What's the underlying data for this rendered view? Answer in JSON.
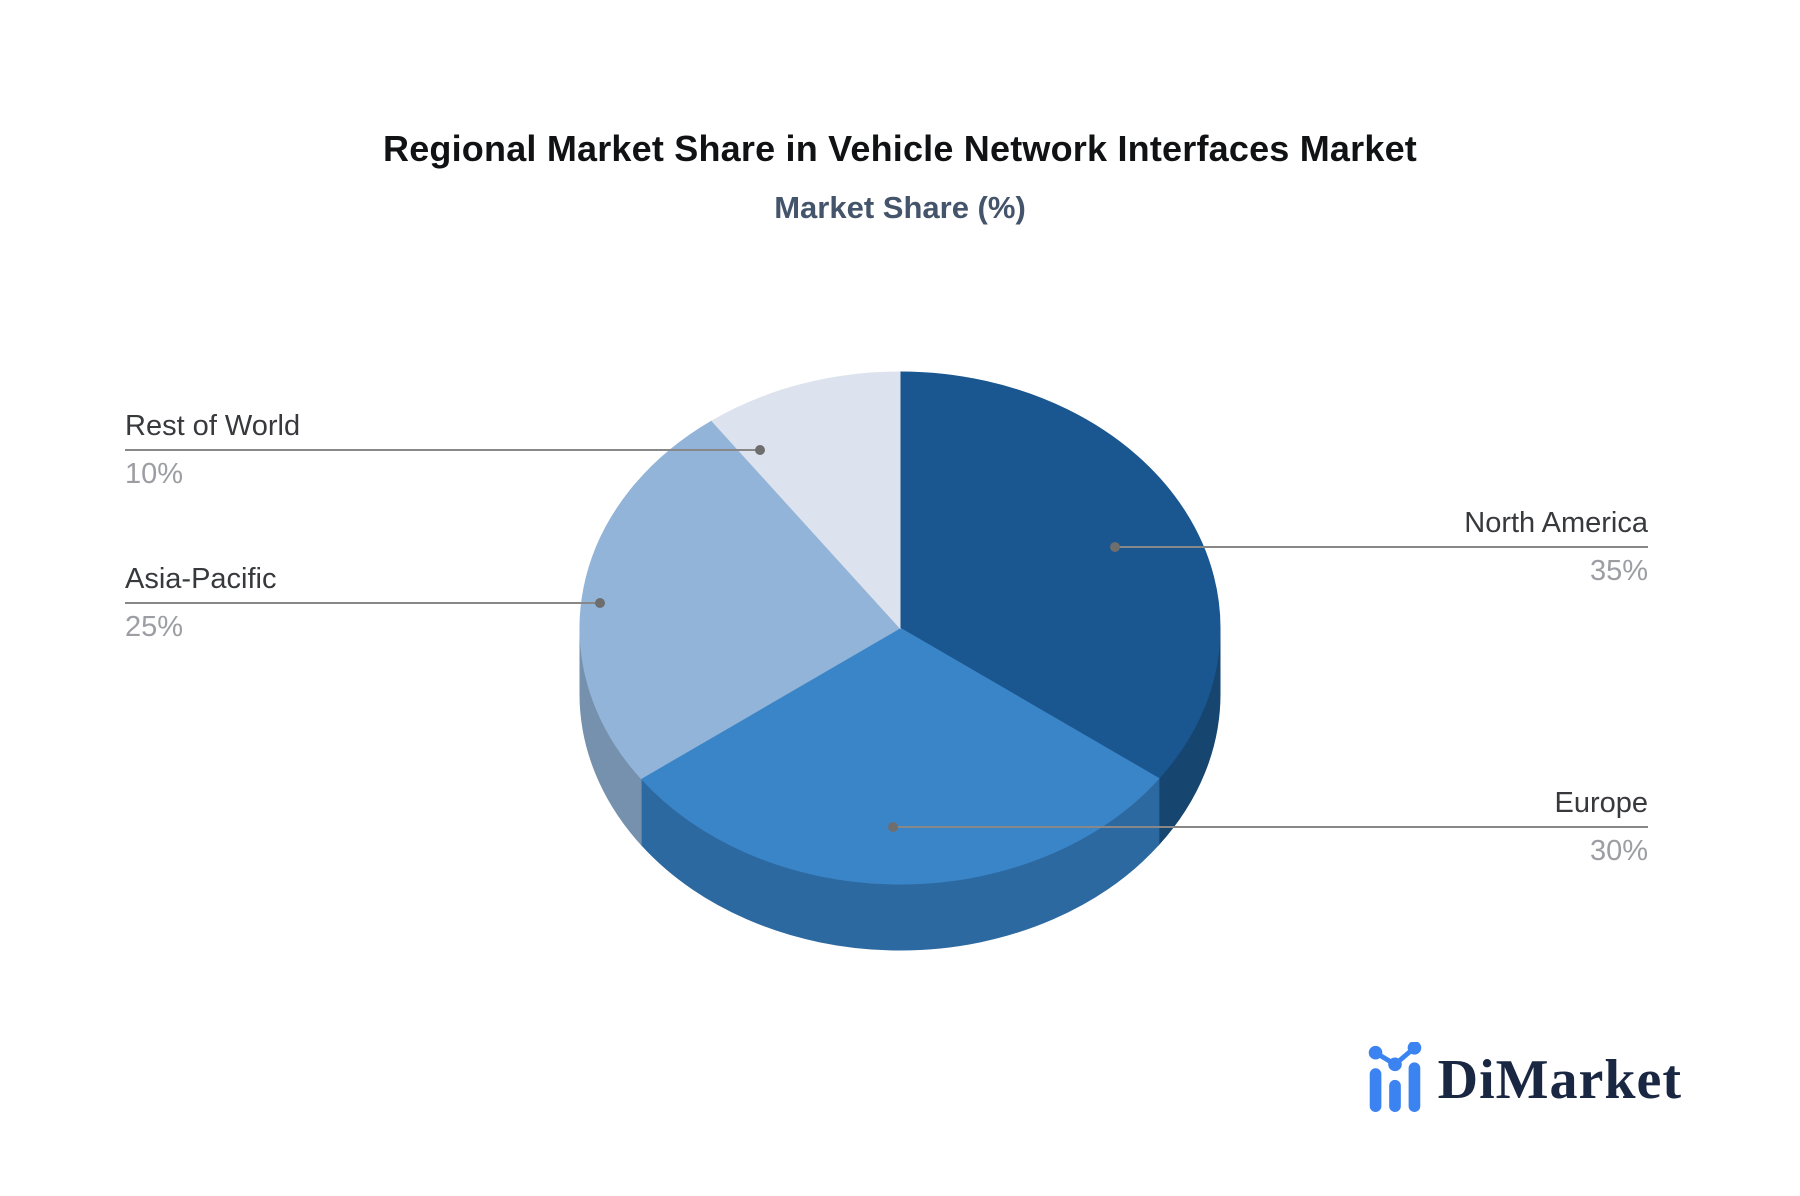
{
  "title": "Regional Market Share in Vehicle Network Interfaces Market",
  "subtitle": "Market Share (%)",
  "brand": {
    "name": "DiMarket",
    "icon": "bar-line-chart-icon",
    "icon_color": "#3c83f2",
    "text_color": "#1a2742"
  },
  "chart_data": {
    "type": "pie",
    "title": "Regional Market Share in Vehicle Network Interfaces Market",
    "subtitle": "Market Share (%)",
    "unit": "%",
    "style": "3d-pie",
    "start_angle_deg": 0,
    "direction": "clockwise",
    "legend_position": "none",
    "slices": [
      {
        "label": "North America",
        "value": 35,
        "display": "35%",
        "color": "#1a568f",
        "side_color": "#16456f",
        "label_side": "right"
      },
      {
        "label": "Europe",
        "value": 30,
        "display": "30%",
        "color": "#3a85c7",
        "side_color": "#2d69a1",
        "label_side": "right"
      },
      {
        "label": "Asia-Pacific",
        "value": 25,
        "display": "25%",
        "color": "#92b4d8",
        "side_color": "#7591ad",
        "label_side": "left"
      },
      {
        "label": "Rest of World",
        "value": 10,
        "display": "10%",
        "color": "#dde3ee",
        "side_color": "#b8c4d6",
        "label_side": "left"
      }
    ],
    "leader_line_color": "#888888",
    "leader_dot_color": "#6e6e6e",
    "label_name_color": "#37393c",
    "label_value_color": "#9c9ea3"
  }
}
